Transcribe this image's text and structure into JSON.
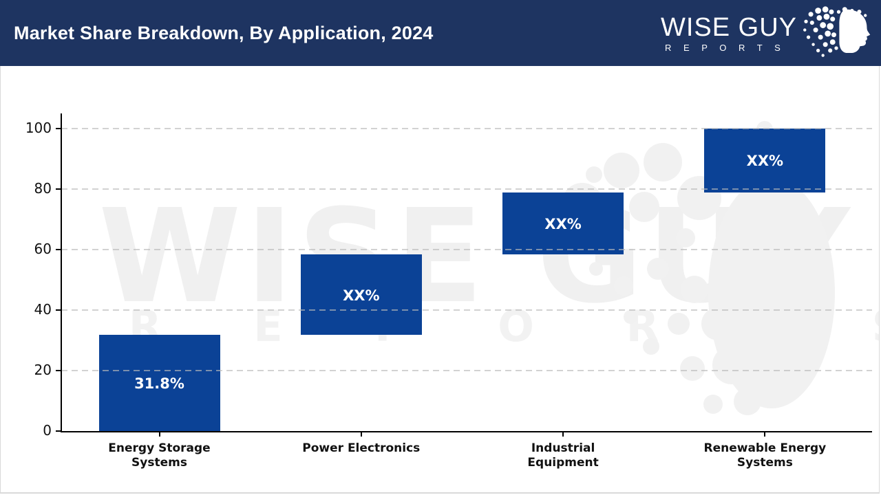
{
  "header": {
    "title": "Market Share Breakdown, By Application, 2024",
    "logo": {
      "name_line": "WISE GUY",
      "sub_line": "R E P O R T S"
    },
    "colors": {
      "background": "#1e3461",
      "text": "#ffffff"
    }
  },
  "watermark": {
    "line1": "WISE GUY",
    "line2": "R E P O R T S"
  },
  "chart_data": {
    "type": "bar",
    "subtype": "waterfall",
    "title": "Market Share Breakdown, By Application, 2024",
    "xlabel": "",
    "ylabel": "",
    "ylim": [
      0,
      100
    ],
    "yticks": [
      0,
      20,
      40,
      60,
      80,
      100
    ],
    "grid": {
      "horizontal": true,
      "style": "dashed"
    },
    "legend": "none",
    "categories": [
      [
        "Energy Storage",
        "Systems"
      ],
      [
        "Power Electronics"
      ],
      [
        "Industrial",
        "Equipment"
      ],
      [
        "Renewable Energy",
        "Systems"
      ]
    ],
    "segments": [
      {
        "category": "Energy Storage Systems",
        "start": 0,
        "end": 31.8,
        "label": "31.8%"
      },
      {
        "category": "Power Electronics",
        "start": 31.8,
        "end": 58.4,
        "label": "XX%"
      },
      {
        "category": "Industrial Equipment",
        "start": 58.4,
        "end": 78.9,
        "label": "XX%"
      },
      {
        "category": "Renewable Energy Systems",
        "start": 78.9,
        "end": 100,
        "label": "XX%"
      }
    ],
    "colors": {
      "bar": "#0b4296",
      "bar_label": "#ffffff",
      "axis": "#000000",
      "tick_label": "#111111",
      "gridline": "#c9c9c9",
      "watermark": "#f0f0f0"
    }
  }
}
